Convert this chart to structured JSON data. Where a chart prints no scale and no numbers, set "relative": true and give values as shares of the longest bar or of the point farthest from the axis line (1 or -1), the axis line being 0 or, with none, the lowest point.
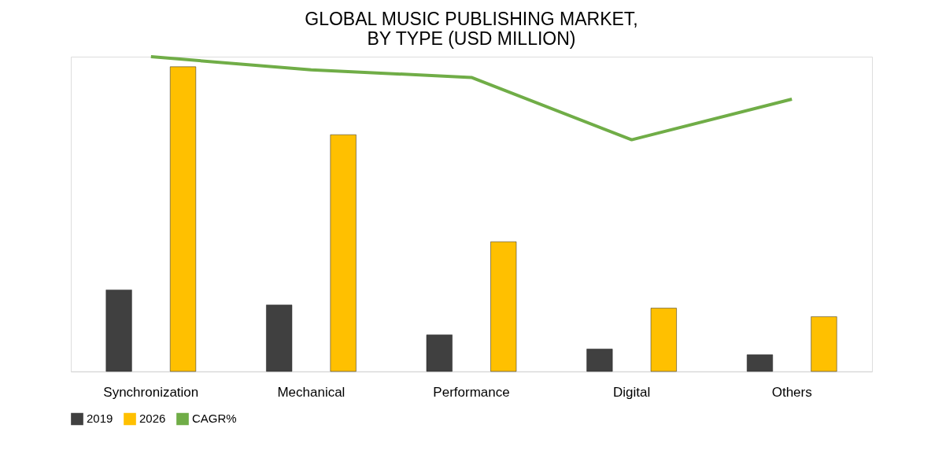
{
  "chart_data": {
    "type": "bar",
    "title": "GLOBAL MUSIC PUBLISHING MARKET,\nBY TYPE (USD MILLION)",
    "relative": true,
    "legend": "bottom",
    "categories": [
      "Synchronization",
      "Mechanical",
      "Performance",
      "Digital",
      "Others"
    ],
    "series": [
      {
        "name": "2019",
        "color": "#404040",
        "values": [
          0.259,
          0.211,
          0.116,
          0.071,
          0.053
        ]
      },
      {
        "name": "2026",
        "color": "#ffc000",
        "values": [
          0.968,
          0.752,
          0.412,
          0.201,
          0.174
        ]
      },
      {
        "name": "CAGR%",
        "type": "line",
        "color": "#70ad47",
        "values": [
          1.0,
          0.958,
          0.934,
          0.736,
          0.865
        ]
      }
    ]
  }
}
